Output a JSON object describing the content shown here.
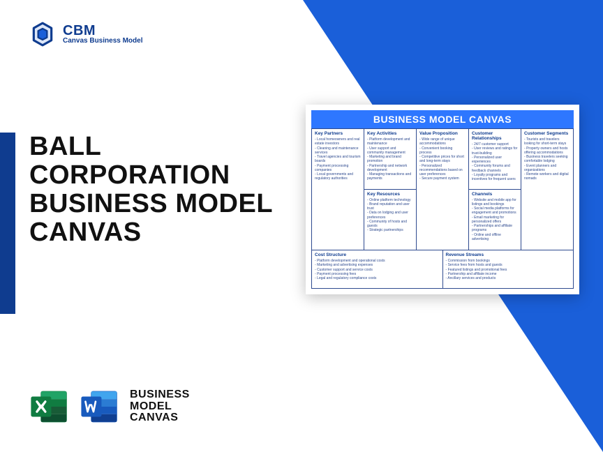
{
  "colors": {
    "primary_blue": "#1a5fd9",
    "dark_blue": "#0f3c8f",
    "accent_blue": "#2e77ff",
    "text_dark": "#111111",
    "excel_green": "#107c41",
    "word_blue": "#185abd"
  },
  "logo": {
    "abbr": "CBM",
    "tagline": "Canvas Business Model"
  },
  "title": "BALL CORPORATION BUSINESS MODEL CANVAS",
  "bottom_label": "BUSINESS MODEL CANVAS",
  "canvas": {
    "header": "BUSINESS MODEL CANVAS",
    "blocks": {
      "kp": {
        "title": "Key Partners",
        "items": [
          "Local homeowners and real estate investors",
          "Cleaning and maintenance services",
          "Travel agencies and tourism boards",
          "Payment processing companies",
          "Local governments and regulatory authorities"
        ]
      },
      "ka": {
        "title": "Key Activities",
        "items": [
          "Platform development and maintenance",
          "User support and community management",
          "Marketing and brand promotion",
          "Partnership and network development",
          "Managing transactions and payments"
        ]
      },
      "kr": {
        "title": "Key Resources",
        "items": [
          "Online platform technology",
          "Brand reputation and user trust",
          "Data on lodging and user preferences",
          "Community of hosts and guests",
          "Strategic partnerships"
        ]
      },
      "vp": {
        "title": "Value Proposition",
        "items": [
          "Wide range of unique accommodations",
          "Convenient booking process",
          "Competitive prices for short and long-term stays",
          "Personalized recommendations based on user preferences",
          "Secure payment system"
        ]
      },
      "cr": {
        "title": "Customer Relationships",
        "items": [
          "24/7 customer support",
          "User reviews and ratings for trust-building",
          "Personalized user experiences",
          "Community forums and feedback channels",
          "Loyalty programs and incentives for frequent users"
        ]
      },
      "ch": {
        "title": "Channels",
        "items": [
          "Website and mobile app for listings and bookings",
          "Social media platforms for engagement and promotions",
          "Email marketing for personalized offers",
          "Partnerships and affiliate programs",
          "Online and offline advertising"
        ]
      },
      "cs": {
        "title": "Customer Segments",
        "items": [
          "Tourists and travelers looking for short-term stays",
          "Property owners and hosts offering accommodations",
          "Business travelers seeking comfortable lodging",
          "Event planners and organizations",
          "Remote workers and digital nomads"
        ]
      },
      "cost": {
        "title": "Cost Structure",
        "items": [
          "Platform development and operational costs",
          "Marketing and advertising expenses",
          "Customer support and service costs",
          "Payment processing fees",
          "Legal and regulatory compliance costs"
        ]
      },
      "rev": {
        "title": "Revenue Streams",
        "items": [
          "Commission from bookings",
          "Service fees from hosts and guests",
          "Featured listings and promotional fees",
          "Partnership and affiliate income",
          "Ancillary services and products"
        ]
      }
    }
  }
}
